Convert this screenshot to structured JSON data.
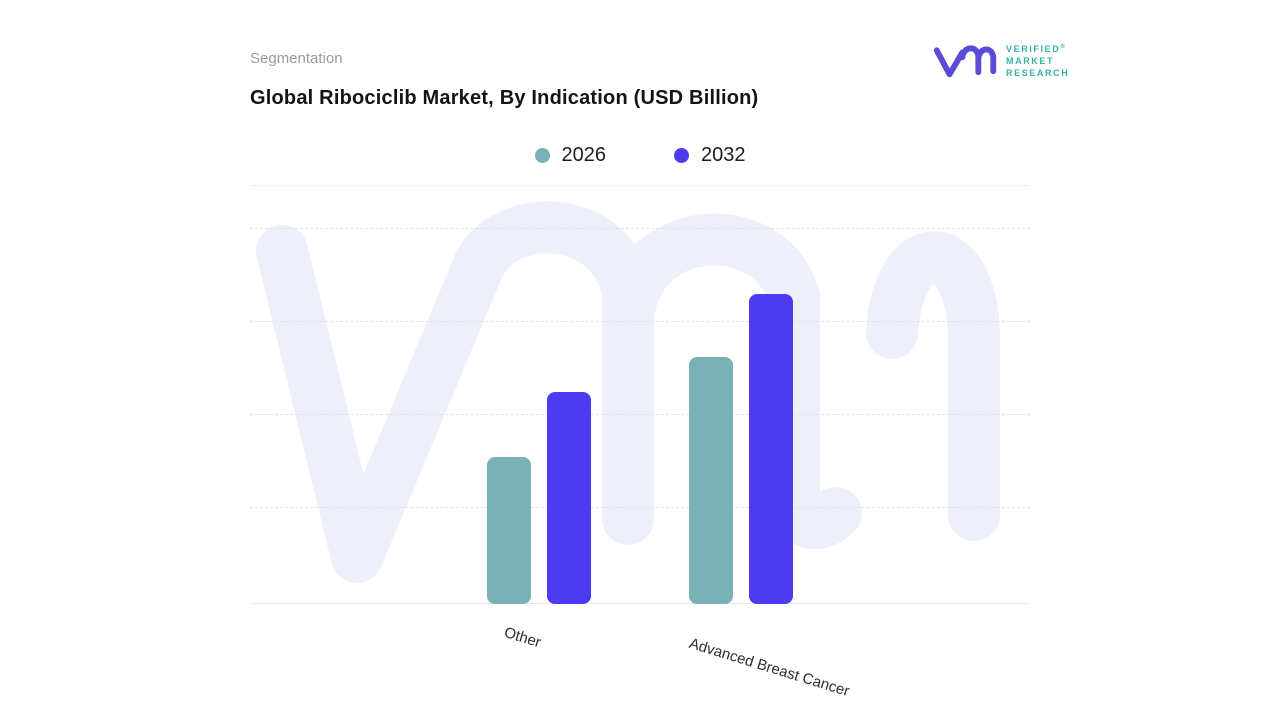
{
  "header": {
    "eyebrow": "Segmentation",
    "title": "Global Ribociclib Market, By Indication (USD Billion)"
  },
  "logo": {
    "brand_lines": [
      "VERIFIED",
      "MARKET",
      "RESEARCH"
    ],
    "registered_mark": "®",
    "glyph": "vm-monogram",
    "glyph_color": "#5a4bd8",
    "text_color": "#35b2a4"
  },
  "watermark": {
    "name": "vmr-monogram-watermark",
    "color": "#edeffa"
  },
  "chart_data": {
    "type": "bar",
    "title": "Global Ribociclib Market, By Indication (USD Billion)",
    "categories": [
      "Other",
      "Advanced Breast Cancer"
    ],
    "series": [
      {
        "name": "2026",
        "color": "#7ab1b6",
        "values": [
          1.58,
          2.65
        ]
      },
      {
        "name": "2032",
        "color": "#4d3bf0",
        "values": [
          2.27,
          3.32
        ]
      }
    ],
    "xlabel": "",
    "ylabel": "",
    "units": "USD Billion",
    "y_axis_tick_labels_visible": false,
    "value_scale_note": "values estimated in gridline units; y-axis is unlabeled in source",
    "ylim": [
      0,
      4.5
    ],
    "grid": "horizontal dashed lines",
    "legend_position": "top-center",
    "bar_corner_radius": 8,
    "category_label_rotation_deg": 17
  }
}
